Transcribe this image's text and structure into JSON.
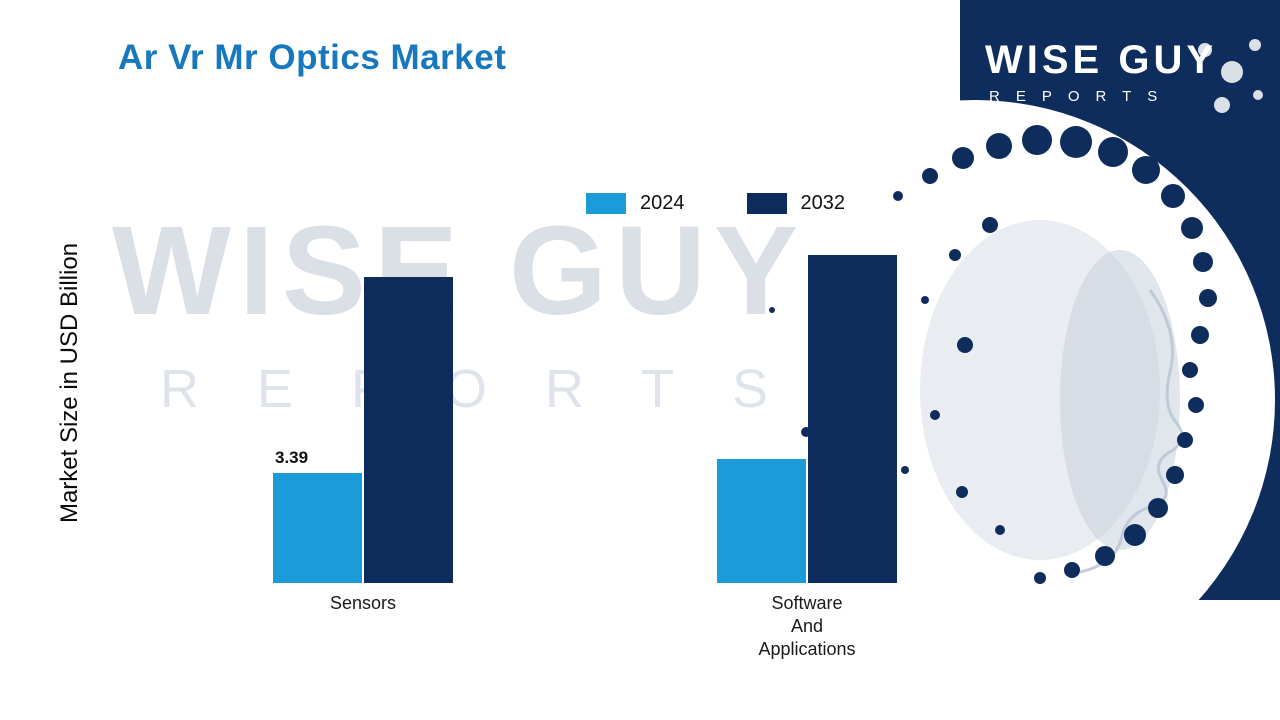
{
  "page": {
    "title": "Ar Vr Mr Optics Market"
  },
  "logo": {
    "line1": "WISE GUY",
    "line2": "REPORTS"
  },
  "watermark": {
    "line1": "WISE GUY",
    "line2": "REPORTS"
  },
  "chart_data": {
    "type": "bar",
    "title": "Ar Vr Mr Optics Market",
    "ylabel": "Market Size in USD Billion",
    "xlabel": "",
    "categories": [
      "Sensors",
      "Software And Applications"
    ],
    "category_lines": [
      [
        "Sensors"
      ],
      [
        "Software",
        "And",
        "Applications"
      ]
    ],
    "series": [
      {
        "name": "2024",
        "color": "#1b9cd9",
        "values": [
          3.39,
          3.8
        ],
        "value_labels": [
          "3.39",
          ""
        ]
      },
      {
        "name": "2032",
        "color": "#0d2b5b",
        "values": [
          9.4,
          10.1
        ],
        "value_labels": [
          "",
          ""
        ]
      }
    ],
    "ylim": [
      0,
      10.5
    ],
    "grid": false,
    "legend_position": "top-right"
  },
  "colors": {
    "title": "#1878be",
    "bar_2024": "#1b9cd9",
    "bar_2032": "#0d2b5b",
    "logo_background": "#0e2d5c",
    "watermark": "#c5cdd8"
  }
}
